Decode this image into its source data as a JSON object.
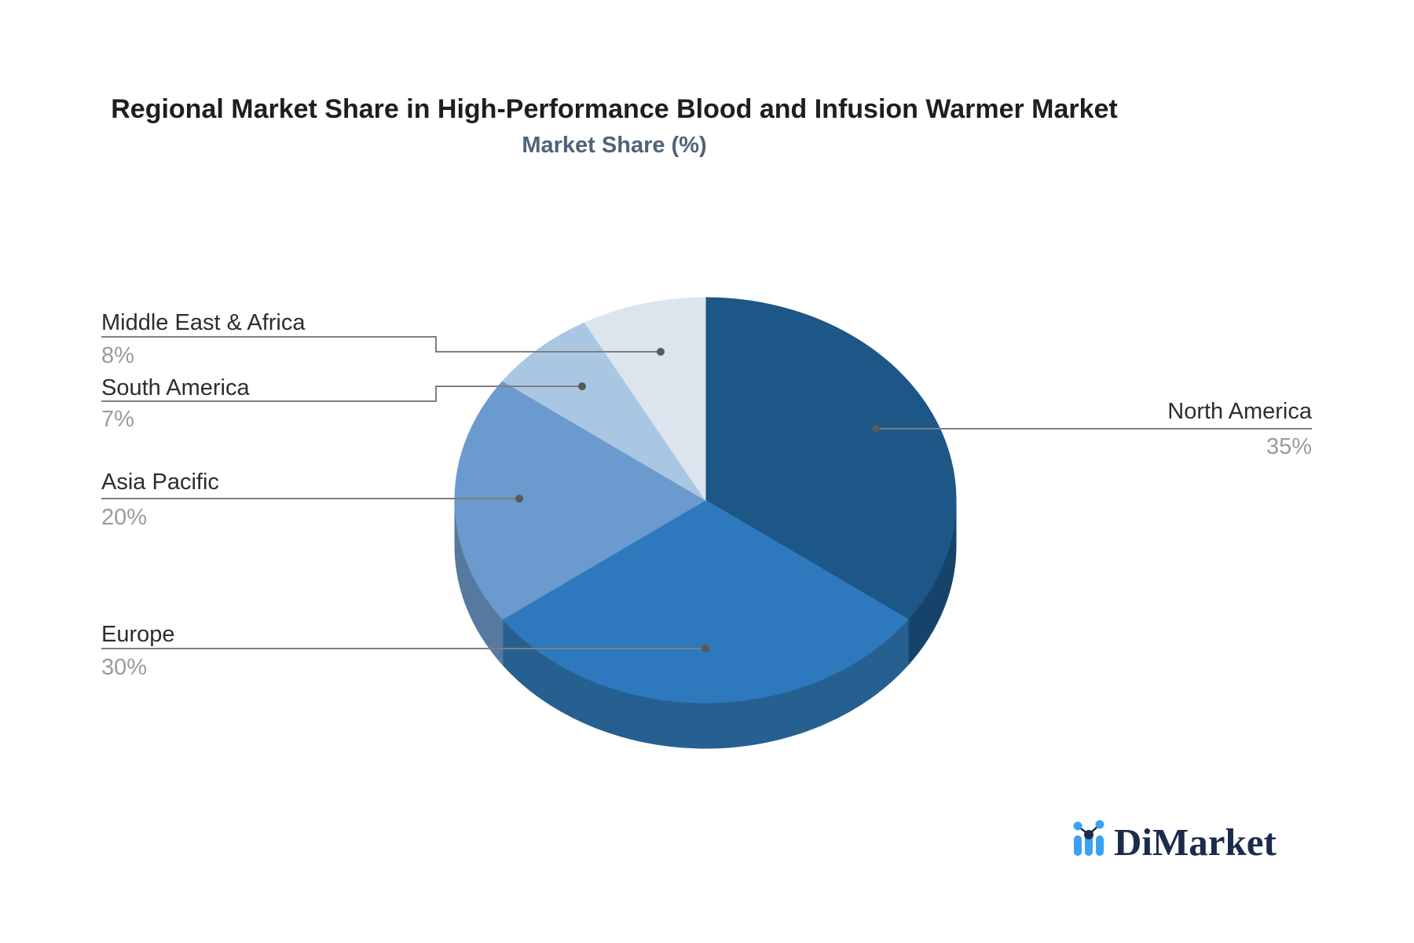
{
  "title": "Regional Market Share in High-Performance Blood and Infusion Warmer Market",
  "subtitle": "Market Share (%)",
  "logo": {
    "text": "DiMarket",
    "icon": "bar-chart-trend-icon",
    "icon_bar_color": "#3ba1f2",
    "icon_dot_dark_color": "#1b2b4c",
    "text_color": "#1b2b4c"
  },
  "chart_data": {
    "type": "pie",
    "effect": "3d",
    "title": "Regional Market Share in High-Performance Blood and Infusion Warmer Market",
    "subtitle": "Market Share (%)",
    "direction": "clockwise",
    "start_angle_deg": 0,
    "total": 100,
    "legend_position": "callout-labels",
    "connector_color": "#7f7f7f",
    "dot_color": "#595959",
    "label_color": "#2d2d2d",
    "value_color": "#9b9b9b",
    "slices": [
      {
        "label": "North America",
        "value": 35,
        "value_label": "35%",
        "color": "#1c5788",
        "side_color": "#15436a"
      },
      {
        "label": "Europe",
        "value": 30,
        "value_label": "30%",
        "color": "#2e79bd",
        "side_color": "#266090"
      },
      {
        "label": "Asia Pacific",
        "value": 20,
        "value_label": "20%",
        "color": "#6a9ace",
        "side_color": "#56799f"
      },
      {
        "label": "South America",
        "value": 7,
        "value_label": "7%",
        "color": "#a9c7e3",
        "side_color": "#8ba3bd"
      },
      {
        "label": "Middle East & Africa",
        "value": 8,
        "value_label": "8%",
        "color": "#dce4ee",
        "side_color": "#b5bcc9"
      }
    ]
  }
}
